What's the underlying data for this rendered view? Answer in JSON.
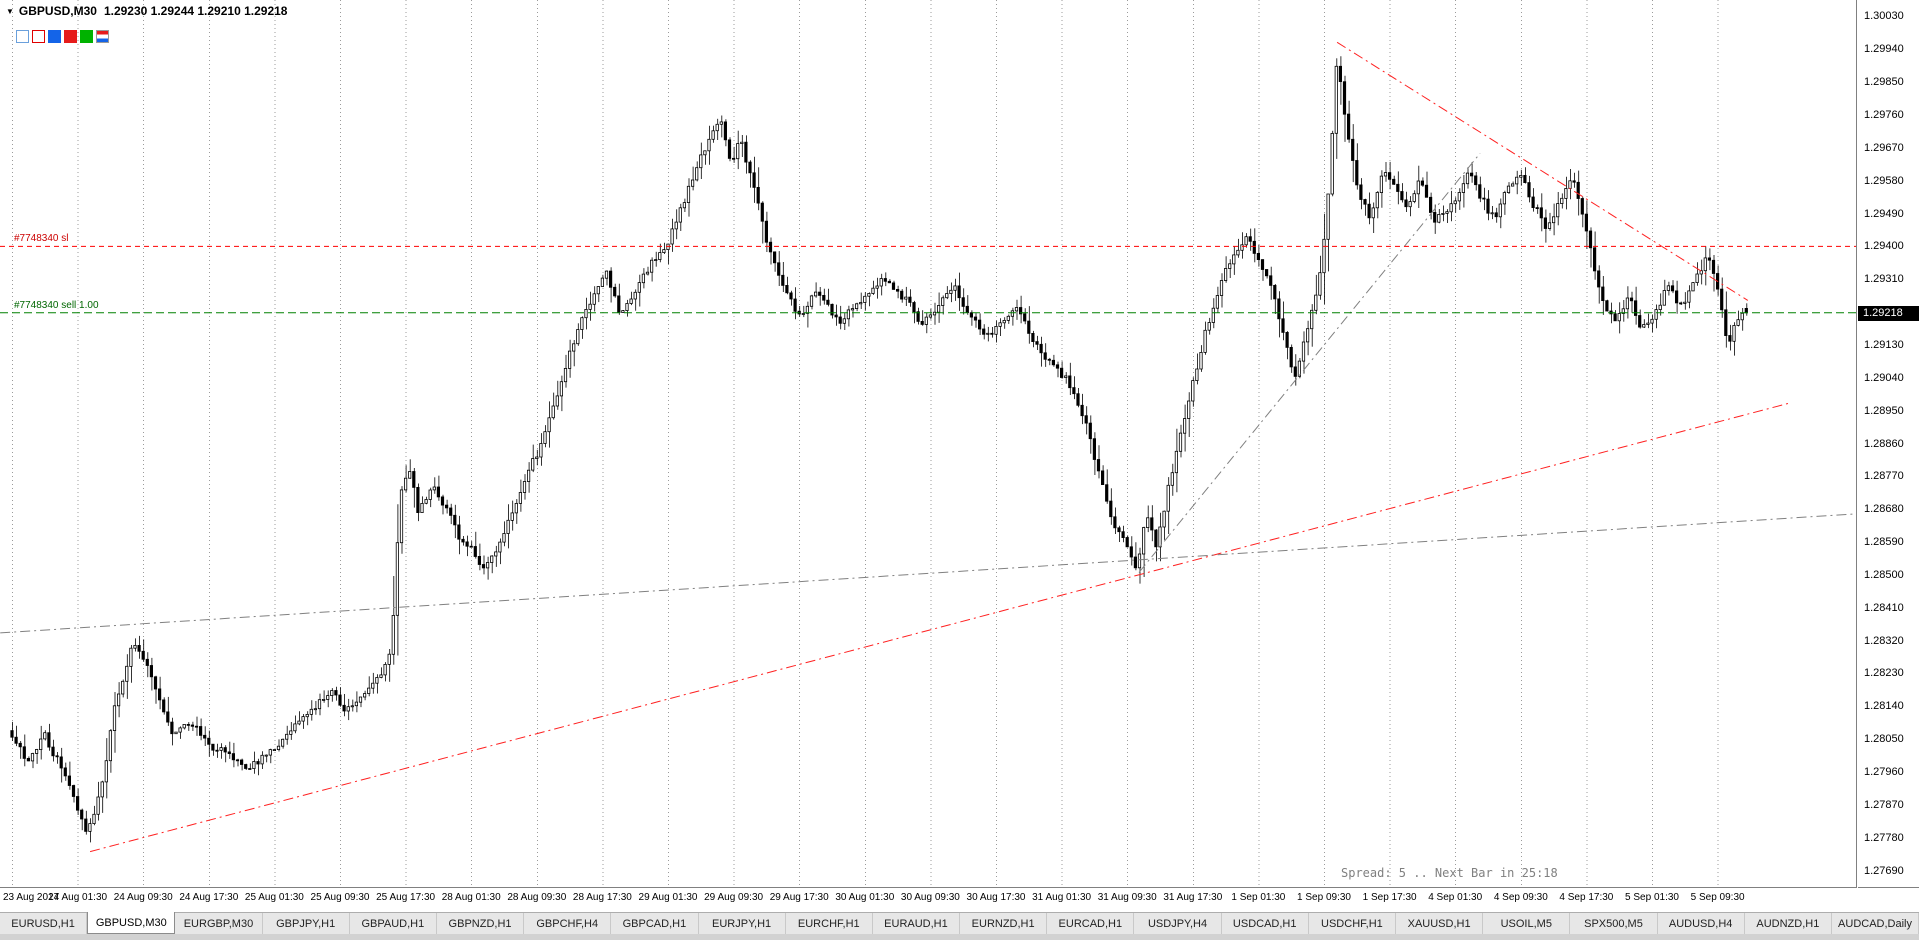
{
  "header": {
    "symbol": "GBPUSD,M30",
    "ohlc": "1.29230 1.29244 1.29210 1.29218",
    "dropdown_icon": "▼"
  },
  "toolbar": {
    "icons": [
      {
        "name": "hollow-blue-square-icon",
        "fill": "#ffffff",
        "border": "#6aa0dc"
      },
      {
        "name": "hollow-red-square-icon",
        "fill": "#ffffff",
        "border": "#e00000"
      },
      {
        "name": "blue-square-icon",
        "fill": "#1464e8",
        "border": "#1464e8"
      },
      {
        "name": "red-square-icon",
        "fill": "#e61c1c",
        "border": "#e61c1c"
      },
      {
        "name": "green-square-icon",
        "fill": "#00b200",
        "border": "#00b200"
      },
      {
        "name": "striped-flag-icon",
        "stripes": [
          "#e61c1c",
          "#ffffff",
          "#1464e8"
        ],
        "border": "#9a9a9a"
      }
    ]
  },
  "overlays": {
    "spread_text": "Spread: 5 .. Next Bar in 25:18"
  },
  "tabs": {
    "active_index": 1,
    "items": [
      "EURUSD,H1",
      "GBPUSD,M30",
      "EURGBP,M30",
      "GBPJPY,H1",
      "GBPAUD,H1",
      "GBPNZD,H1",
      "GBPCHF,H4",
      "GBPCAD,H1",
      "EURJPY,H1",
      "EURCHF,H1",
      "EURAUD,H1",
      "EURNZD,H1",
      "EURCAD,H1",
      "USDJPY,H4",
      "USDCAD,H1",
      "USDCHF,H1",
      "XAUUSD,H1",
      "USOIL,M5",
      "SPX500,M5",
      "AUDUSD,H4",
      "AUDNZD,H1",
      "AUDCAD,Daily"
    ]
  },
  "chart_data": {
    "type": "candlestick",
    "symbol": "GBPUSD",
    "timeframe": "M30",
    "title": "GBPUSD,M30",
    "current_bar": {
      "open": 1.2923,
      "high": 1.29244,
      "low": 1.2921,
      "close": 1.29218
    },
    "style": {
      "up_fill": "#ffffff",
      "down_fill": "#000000",
      "outline": "#000000",
      "grid_color": "#9b9b9b"
    },
    "y_axis": {
      "min": 1.27645,
      "max": 1.30075,
      "tick_step": 0.0009,
      "current_label": "1.29218",
      "ticks": [
        "1.30030",
        "1.29940",
        "1.29850",
        "1.29760",
        "1.29670",
        "1.29580",
        "1.29490",
        "1.29400",
        "1.29310",
        "1.29220",
        "1.29130",
        "1.29040",
        "1.28950",
        "1.28860",
        "1.28770",
        "1.28680",
        "1.28590",
        "1.28500",
        "1.28410",
        "1.28320",
        "1.28230",
        "1.28140",
        "1.28050",
        "1.27960",
        "1.27870",
        "1.27780",
        "1.27690"
      ]
    },
    "x_axis": {
      "bars_per_label": 16,
      "total_bars": 424,
      "labels": [
        "23 Aug 2017",
        "24 Aug 01:30",
        "24 Aug 09:30",
        "24 Aug 17:30",
        "25 Aug 01:30",
        "25 Aug 09:30",
        "25 Aug 17:30",
        "28 Aug 01:30",
        "28 Aug 09:30",
        "28 Aug 17:30",
        "29 Aug 01:30",
        "29 Aug 09:30",
        "29 Aug 17:30",
        "30 Aug 01:30",
        "30 Aug 09:30",
        "30 Aug 17:30",
        "31 Aug 01:30",
        "31 Aug 09:30",
        "31 Aug 17:30",
        "1 Sep 01:30",
        "1 Sep 09:30",
        "1 Sep 17:30",
        "4 Sep 01:30",
        "4 Sep 09:30",
        "4 Sep 17:30",
        "5 Sep 01:30",
        "5 Sep 09:30"
      ]
    },
    "price_path_anchors": [
      [
        0,
        1.2806
      ],
      [
        0.25,
        1.2799
      ],
      [
        0.5,
        1.2806
      ],
      [
        0.8,
        1.2795
      ],
      [
        1.0,
        1.2786
      ],
      [
        1.15,
        1.2779
      ],
      [
        1.35,
        1.2791
      ],
      [
        1.6,
        1.2817
      ],
      [
        1.85,
        1.2831
      ],
      [
        2.0,
        1.2827
      ],
      [
        2.2,
        1.2819
      ],
      [
        2.45,
        1.2806
      ],
      [
        2.7,
        1.281
      ],
      [
        3.0,
        1.2803
      ],
      [
        3.3,
        1.2801
      ],
      [
        3.6,
        1.2797
      ],
      [
        4.0,
        1.2802
      ],
      [
        4.3,
        1.2808
      ],
      [
        4.6,
        1.2813
      ],
      [
        4.85,
        1.2818
      ],
      [
        5.1,
        1.2813
      ],
      [
        5.35,
        1.2817
      ],
      [
        5.6,
        1.2822
      ],
      [
        5.78,
        1.2829
      ],
      [
        5.92,
        1.2873
      ],
      [
        6.05,
        1.2879
      ],
      [
        6.2,
        1.2867
      ],
      [
        6.4,
        1.2874
      ],
      [
        6.6,
        1.2869
      ],
      [
        6.8,
        1.2861
      ],
      [
        7.0,
        1.2857
      ],
      [
        7.2,
        1.2851
      ],
      [
        7.5,
        1.2861
      ],
      [
        7.8,
        1.2876
      ],
      [
        8.0,
        1.2883
      ],
      [
        8.3,
        1.2899
      ],
      [
        8.6,
        1.2916
      ],
      [
        8.9,
        1.2929
      ],
      [
        9.05,
        1.2933
      ],
      [
        9.25,
        1.2922
      ],
      [
        9.5,
        1.2928
      ],
      [
        9.75,
        1.2936
      ],
      [
        10.0,
        1.2941
      ],
      [
        10.3,
        1.2955
      ],
      [
        10.6,
        1.2969
      ],
      [
        10.8,
        1.2974
      ],
      [
        10.95,
        1.2963
      ],
      [
        11.1,
        1.2969
      ],
      [
        11.3,
        1.2957
      ],
      [
        11.5,
        1.2941
      ],
      [
        11.75,
        1.2929
      ],
      [
        12.0,
        1.2921
      ],
      [
        12.3,
        1.2928
      ],
      [
        12.6,
        1.2919
      ],
      [
        13.0,
        1.2926
      ],
      [
        13.3,
        1.2931
      ],
      [
        13.6,
        1.2926
      ],
      [
        13.85,
        1.2919
      ],
      [
        14.1,
        1.2923
      ],
      [
        14.35,
        1.293
      ],
      [
        14.6,
        1.2921
      ],
      [
        14.85,
        1.2915
      ],
      [
        15.1,
        1.2919
      ],
      [
        15.35,
        1.2923
      ],
      [
        15.6,
        1.2913
      ],
      [
        15.85,
        1.2907
      ],
      [
        16.1,
        1.2903
      ],
      [
        16.35,
        1.2893
      ],
      [
        16.55,
        1.2879
      ],
      [
        16.75,
        1.2866
      ],
      [
        17.0,
        1.2857
      ],
      [
        17.15,
        1.2852
      ],
      [
        17.3,
        1.2867
      ],
      [
        17.45,
        1.2858
      ],
      [
        17.65,
        1.2876
      ],
      [
        17.85,
        1.2891
      ],
      [
        18.0,
        1.2903
      ],
      [
        18.2,
        1.2917
      ],
      [
        18.4,
        1.2929
      ],
      [
        18.6,
        1.2937
      ],
      [
        18.8,
        1.2943
      ],
      [
        19.0,
        1.2937
      ],
      [
        19.2,
        1.2929
      ],
      [
        19.4,
        1.2914
      ],
      [
        19.55,
        1.2904
      ],
      [
        19.75,
        1.2918
      ],
      [
        19.95,
        1.2933
      ],
      [
        20.08,
        1.2958
      ],
      [
        20.2,
        1.2993
      ],
      [
        20.35,
        1.2972
      ],
      [
        20.5,
        1.2957
      ],
      [
        20.7,
        1.2947
      ],
      [
        20.9,
        1.2961
      ],
      [
        21.05,
        1.2957
      ],
      [
        21.25,
        1.2951
      ],
      [
        21.45,
        1.2958
      ],
      [
        21.7,
        1.2947
      ],
      [
        22.0,
        1.2952
      ],
      [
        22.2,
        1.2961
      ],
      [
        22.4,
        1.2953
      ],
      [
        22.6,
        1.2947
      ],
      [
        22.8,
        1.2956
      ],
      [
        23.0,
        1.2959
      ],
      [
        23.2,
        1.2951
      ],
      [
        23.4,
        1.2945
      ],
      [
        23.6,
        1.2952
      ],
      [
        23.8,
        1.2959
      ],
      [
        24.0,
        1.2945
      ],
      [
        24.2,
        1.2927
      ],
      [
        24.45,
        1.2919
      ],
      [
        24.65,
        1.2926
      ],
      [
        24.85,
        1.2917
      ],
      [
        25.05,
        1.2922
      ],
      [
        25.25,
        1.2929
      ],
      [
        25.45,
        1.2923
      ],
      [
        25.65,
        1.2931
      ],
      [
        25.85,
        1.2937
      ],
      [
        26.0,
        1.2929
      ],
      [
        26.15,
        1.2913
      ],
      [
        26.3,
        1.292
      ],
      [
        26.45,
        1.29218
      ]
    ],
    "orders": [
      {
        "label": "#7748340 sl",
        "price": 1.294,
        "line_color": "#ff0000",
        "label_color": "#cc0000",
        "dash": "5 4"
      },
      {
        "label": "#7748340 sell 1.00",
        "price": 1.29218,
        "line_color": "#008000",
        "label_color": "#006600",
        "dash": "8 4"
      }
    ],
    "trendlines": [
      {
        "name": "ascending-support-red",
        "color": "#ff2020",
        "from": [
          1.19,
          1.27742
        ],
        "to": [
          27.1,
          1.28971
        ]
      },
      {
        "name": "descending-resistance-red",
        "color": "#ff2020",
        "from": [
          20.2,
          1.29959
        ],
        "to": [
          26.46,
          1.29252
        ]
      },
      {
        "name": "steep-ascending-gray",
        "color": "#808080",
        "from": [
          17.18,
          1.28507
        ],
        "to": [
          22.38,
          1.29655
        ]
      },
      {
        "name": "shallow-ascending-gray",
        "color": "#808080",
        "from": [
          -0.18,
          1.28341
        ],
        "to": [
          28.1,
          1.28667
        ]
      }
    ]
  }
}
